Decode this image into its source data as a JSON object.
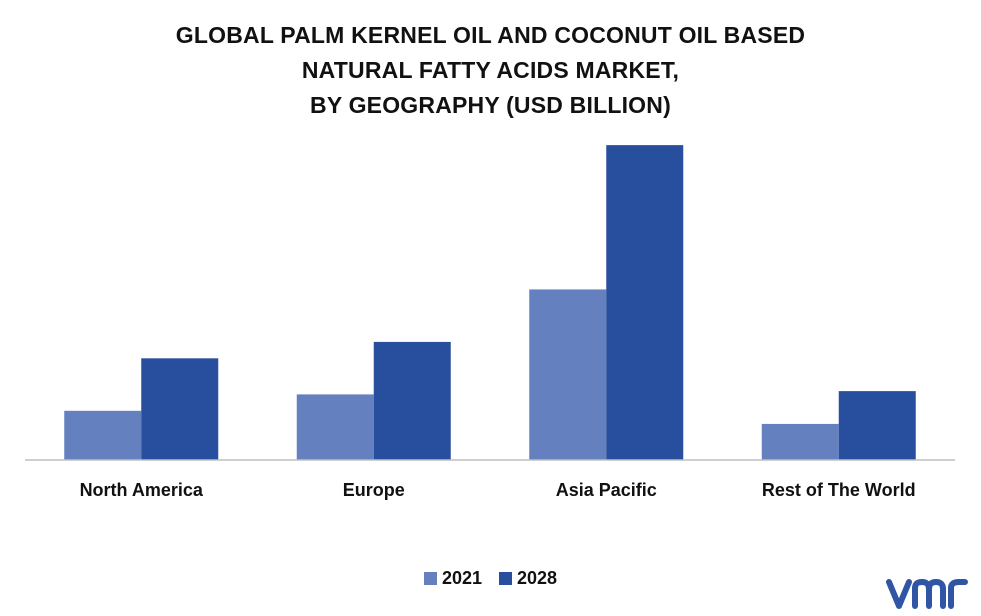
{
  "chart_data": {
    "type": "bar",
    "title": "GLOBAL PALM KERNEL OIL AND COCONUT OIL BASED NATURAL FATTY ACIDS MARKET, BY GEOGRAPHY (USD BILLION)",
    "title_lines": [
      "GLOBAL PALM KERNEL OIL AND COCONUT OIL BASED",
      "NATURAL FATTY ACIDS MARKET,",
      "BY GEOGRAPHY (USD BILLION)"
    ],
    "categories": [
      "North America",
      "Europe",
      "Asia Pacific",
      "Rest of The World"
    ],
    "series": [
      {
        "name": "2021",
        "color": "#6480BF",
        "values": [
          1.5,
          2.0,
          5.2,
          1.1
        ]
      },
      {
        "name": "2028",
        "color": "#284F9D",
        "values": [
          3.1,
          3.6,
          9.6,
          2.1
        ]
      }
    ],
    "ylim": [
      0,
      10
    ],
    "grid": false,
    "legend_position": "bottom"
  },
  "logo": {
    "text": "vmr",
    "color": "#2F55A4"
  }
}
